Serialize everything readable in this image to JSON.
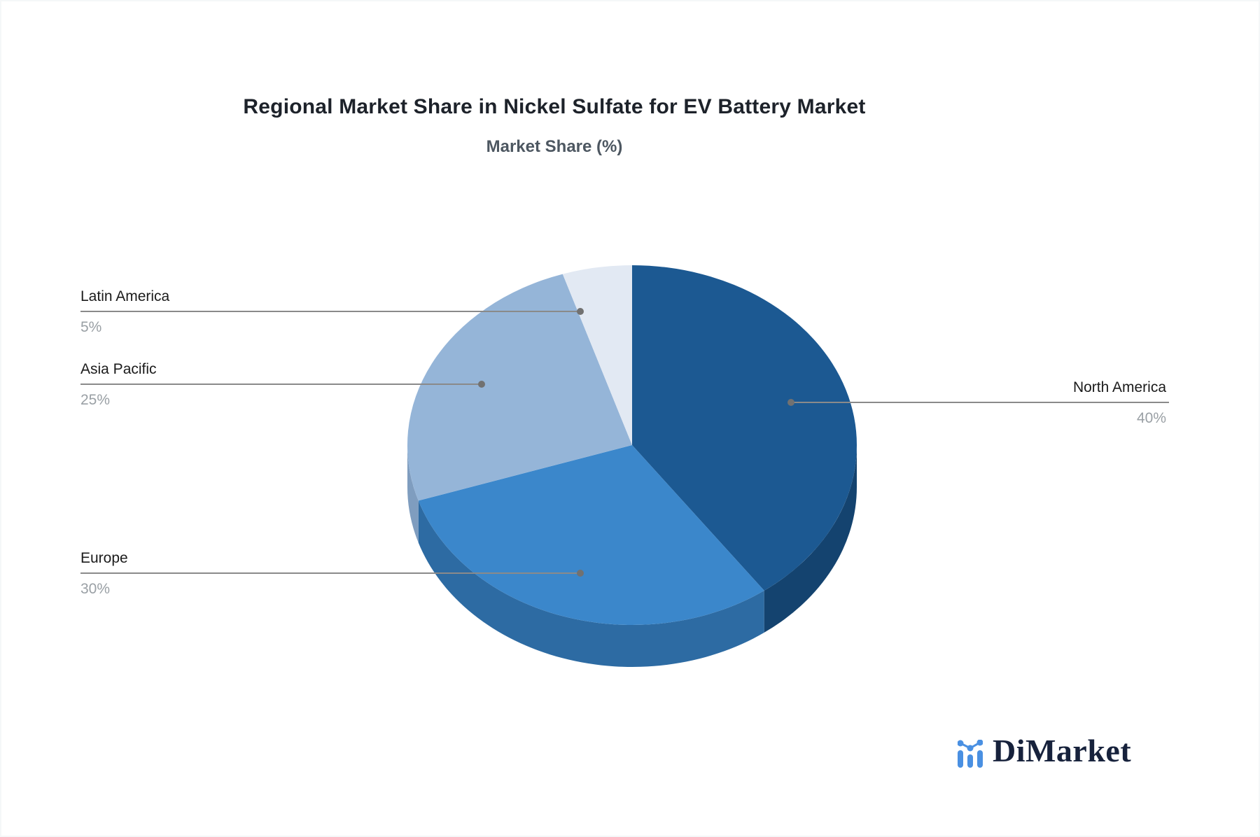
{
  "page": {
    "background": "#ffffff",
    "border_color": "#f5f7f8"
  },
  "chart_data": {
    "type": "pie",
    "style": "3d",
    "title": "Regional Market Share in Nickel Sulfate for EV Battery Market",
    "subtitle": "Market Share (%)",
    "unit": "%",
    "start_angle": "top",
    "direction": "clockwise",
    "legend_position": "callout-labels",
    "slices": [
      {
        "label": "North America",
        "value": 40,
        "value_text": "40%",
        "color": "#1c5992",
        "side_color": "#14436f",
        "label_side": "right"
      },
      {
        "label": "Europe",
        "value": 30,
        "value_text": "30%",
        "color": "#3b87cb",
        "side_color": "#2d6ba3",
        "label_side": "left"
      },
      {
        "label": "Asia Pacific",
        "value": 25,
        "value_text": "25%",
        "color": "#95b5d8",
        "side_color": "#7f9dbf",
        "label_side": "left"
      },
      {
        "label": "Latin America",
        "value": 5,
        "value_text": "5%",
        "color": "#e2e9f3",
        "side_color": "#c9d6e8",
        "label_side": "left"
      }
    ],
    "callout_style": {
      "line_color": "#8a8a8a",
      "dot_color": "#717171",
      "name_color": "#1b1b1b",
      "value_color": "#9aa0a5"
    }
  },
  "branding": {
    "logo_text": "DiMarket",
    "logo_icon": "bar-chart-trend-icon",
    "text_color": "#17223c",
    "icon_color": "#4a90e2"
  }
}
